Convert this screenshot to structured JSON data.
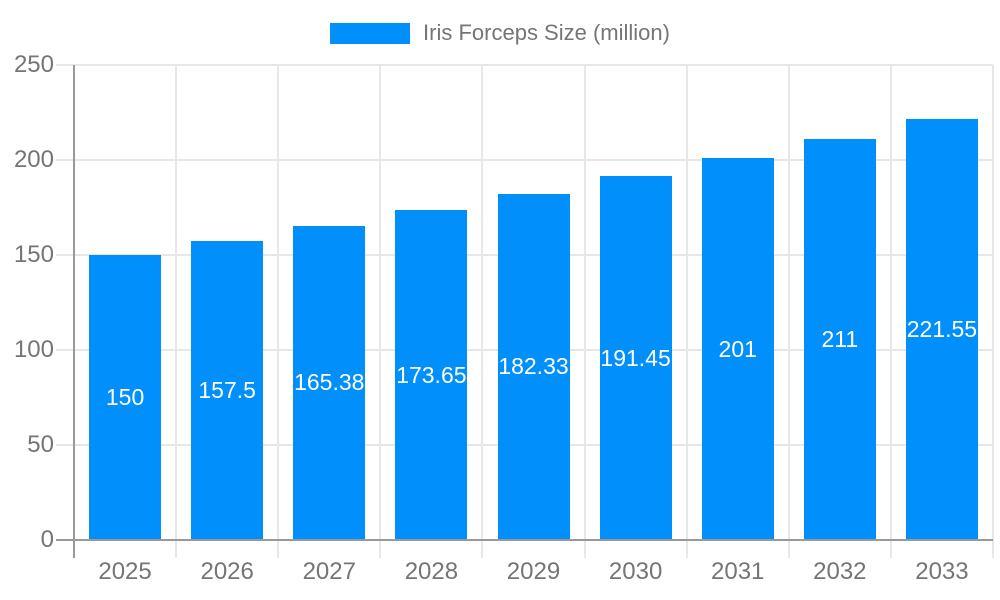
{
  "chart_data": {
    "type": "bar",
    "title": "Iris Forceps Size (million)",
    "legend": {
      "label": "Iris Forceps Size (million)",
      "position": "top"
    },
    "categories": [
      "2025",
      "2026",
      "2027",
      "2028",
      "2029",
      "2030",
      "2031",
      "2032",
      "2033"
    ],
    "values": [
      150,
      157.5,
      165.38,
      173.65,
      182.33,
      191.45,
      201,
      211,
      221.55
    ],
    "value_labels": [
      "150",
      "157.5",
      "165.38",
      "173.65",
      "182.33",
      "191.45",
      "201",
      "211",
      "221.55"
    ],
    "xlabel": "",
    "ylabel": "",
    "ylim": [
      0,
      250
    ],
    "ytick_step": 50,
    "ytick_labels": [
      "0",
      "50",
      "100",
      "150",
      "200",
      "250"
    ],
    "grid": true,
    "legend_position": "top",
    "colors": {
      "bar": "#008FFB",
      "bar_label_text": "#ffffff",
      "axis_text": "#757575",
      "axis_line": "#999999",
      "gridline": "#e7e7e7",
      "background": "#ffffff"
    }
  }
}
